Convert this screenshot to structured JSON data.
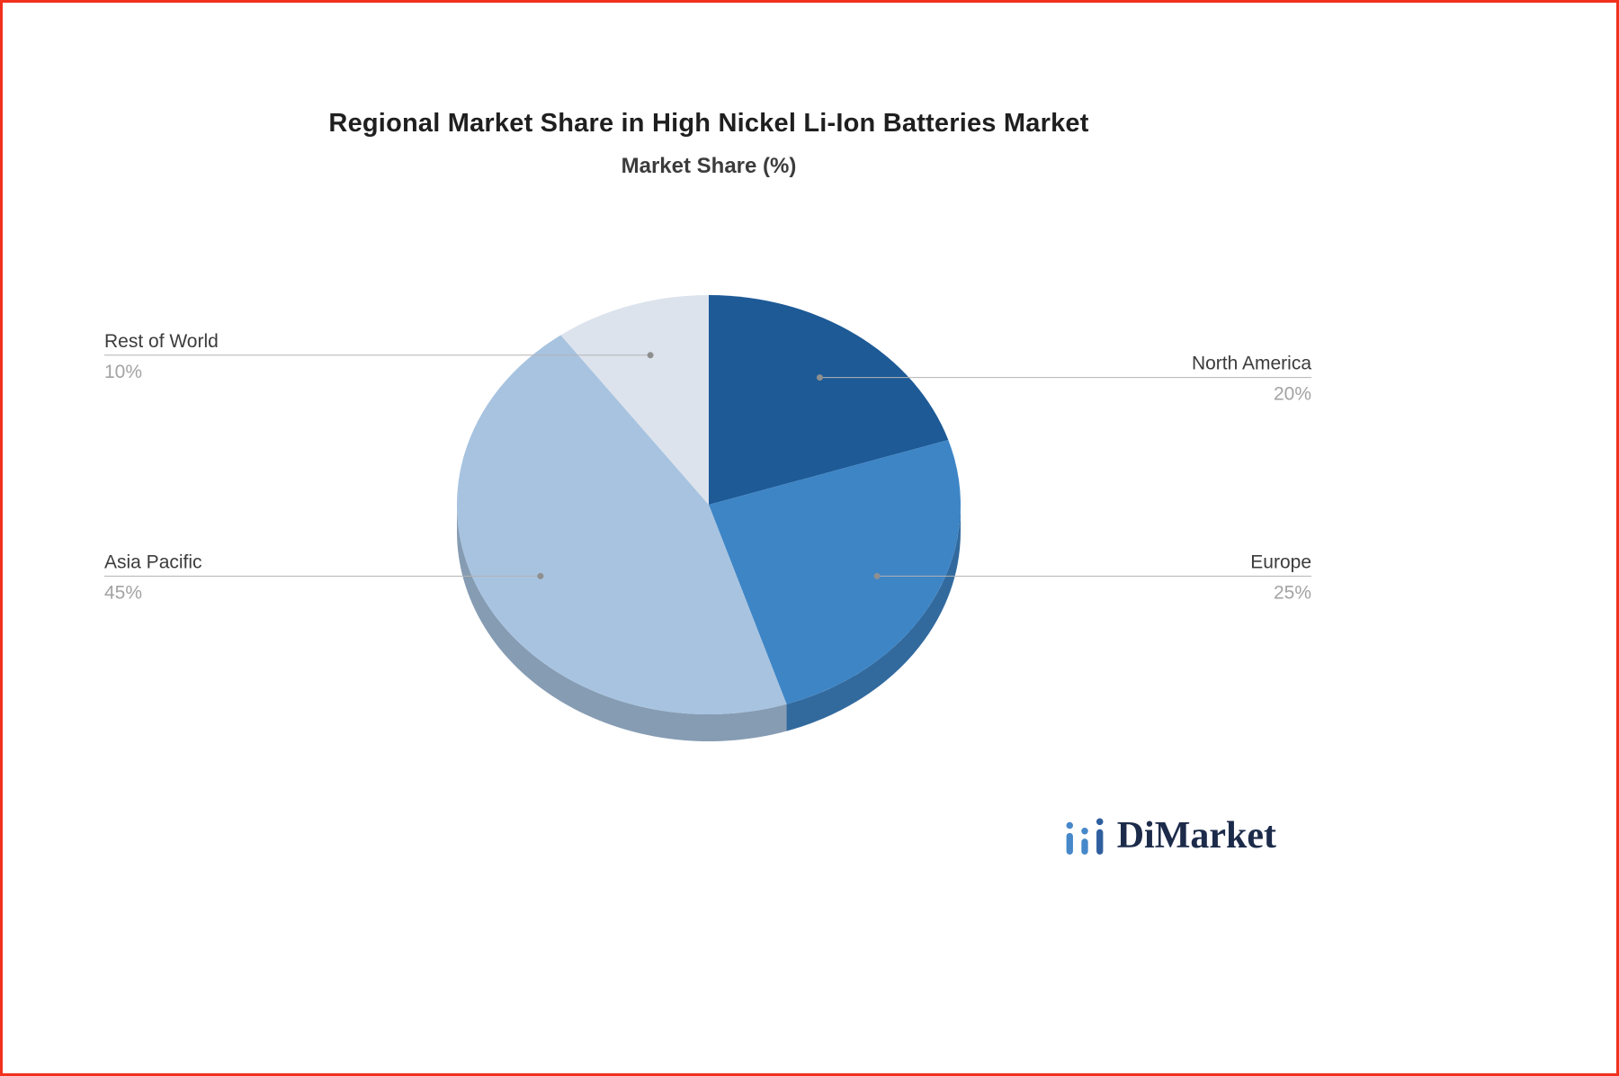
{
  "chart_data": {
    "type": "pie",
    "title": "Regional Market Share in High Nickel Li-Ion Batteries Market",
    "subtitle": "Market Share (%)",
    "unit": "%",
    "style": "3d",
    "direction": "clockwise",
    "start_angle": "12-oclock",
    "legend_position": "none",
    "labels_position": "side-callouts",
    "slices": [
      {
        "label": "North America",
        "value": 20,
        "color": "#1d5a96"
      },
      {
        "label": "Europe",
        "value": 25,
        "color": "#3e85c6"
      },
      {
        "label": "Asia Pacific",
        "value": 45,
        "color": "#a7c3e0"
      },
      {
        "label": "Rest of World",
        "value": 10,
        "color": "#dce3ed"
      }
    ],
    "callout_line_color": "#b3b3b3",
    "callout_label_color": "#3c3c3c",
    "callout_value_color": "#a3a3a3"
  },
  "branding": {
    "logo_text": "DiMarket",
    "logo_icon": "bar-chart-dots-icon"
  }
}
